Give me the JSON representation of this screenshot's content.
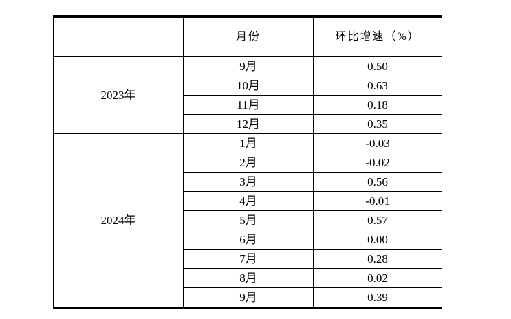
{
  "table": {
    "header": {
      "year_col": "",
      "month_col": "月份",
      "growth_col": "环比增速（%）"
    },
    "sections": [
      {
        "year": "2023年",
        "rows": [
          {
            "month": "9月",
            "value": "0.50"
          },
          {
            "month": "10月",
            "value": "0.63"
          },
          {
            "month": "11月",
            "value": "0.18"
          },
          {
            "month": "12月",
            "value": "0.35"
          }
        ]
      },
      {
        "year": "2024年",
        "rows": [
          {
            "month": "1月",
            "value": "-0.03"
          },
          {
            "month": "2月",
            "value": "-0.02"
          },
          {
            "month": "3月",
            "value": "0.56"
          },
          {
            "month": "4月",
            "value": "-0.01"
          },
          {
            "month": "5月",
            "value": "0.57"
          },
          {
            "month": "6月",
            "value": "0.00"
          },
          {
            "month": "7月",
            "value": "0.28"
          },
          {
            "month": "8月",
            "value": "0.02"
          },
          {
            "month": "9月",
            "value": "0.39"
          }
        ]
      }
    ],
    "colors": {
      "border": "#000000",
      "text": "#000000",
      "background": "#ffffff"
    }
  }
}
